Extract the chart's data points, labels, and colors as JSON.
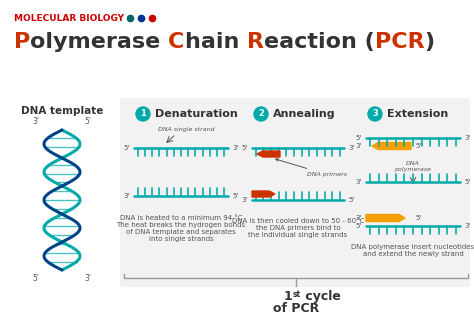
{
  "background_color": "#ffffff",
  "title_tag": "MOLECULAR BIOLOGY",
  "title_tag_color": "#cc0000",
  "dot_colors": [
    "#006666",
    "#003399",
    "#cc0000"
  ],
  "teal_color": "#00aaaa",
  "teal_dark": "#008888",
  "orange_color": "#f5a000",
  "red_primer_color": "#cc3300",
  "dark_text": "#333333",
  "gray_text": "#555555",
  "step_bg": "#f2f2f2",
  "footer_line": "#999999",
  "main_title_fontsize": 16,
  "tag_fontsize": 6.5,
  "step_title_fontsize": 8,
  "body_fontsize": 5.0,
  "label_fontsize": 5.0,
  "steps": [
    {
      "number": "1",
      "title": "Denaturation",
      "desc": "DNA is heated to a minimum 94 °C\nThe heat breaks the hydrogen bonds\nof DNA template and separates\ninto single strands"
    },
    {
      "number": "2",
      "title": "Annealing",
      "desc": "DNA is then cooled down to 50 - 60°C\nthe DNA primers bind to\nthe individual single strands"
    },
    {
      "number": "3",
      "title": "Extension",
      "desc": "DNA polymerase insert nucleotides\nand extend the newly strand"
    }
  ]
}
